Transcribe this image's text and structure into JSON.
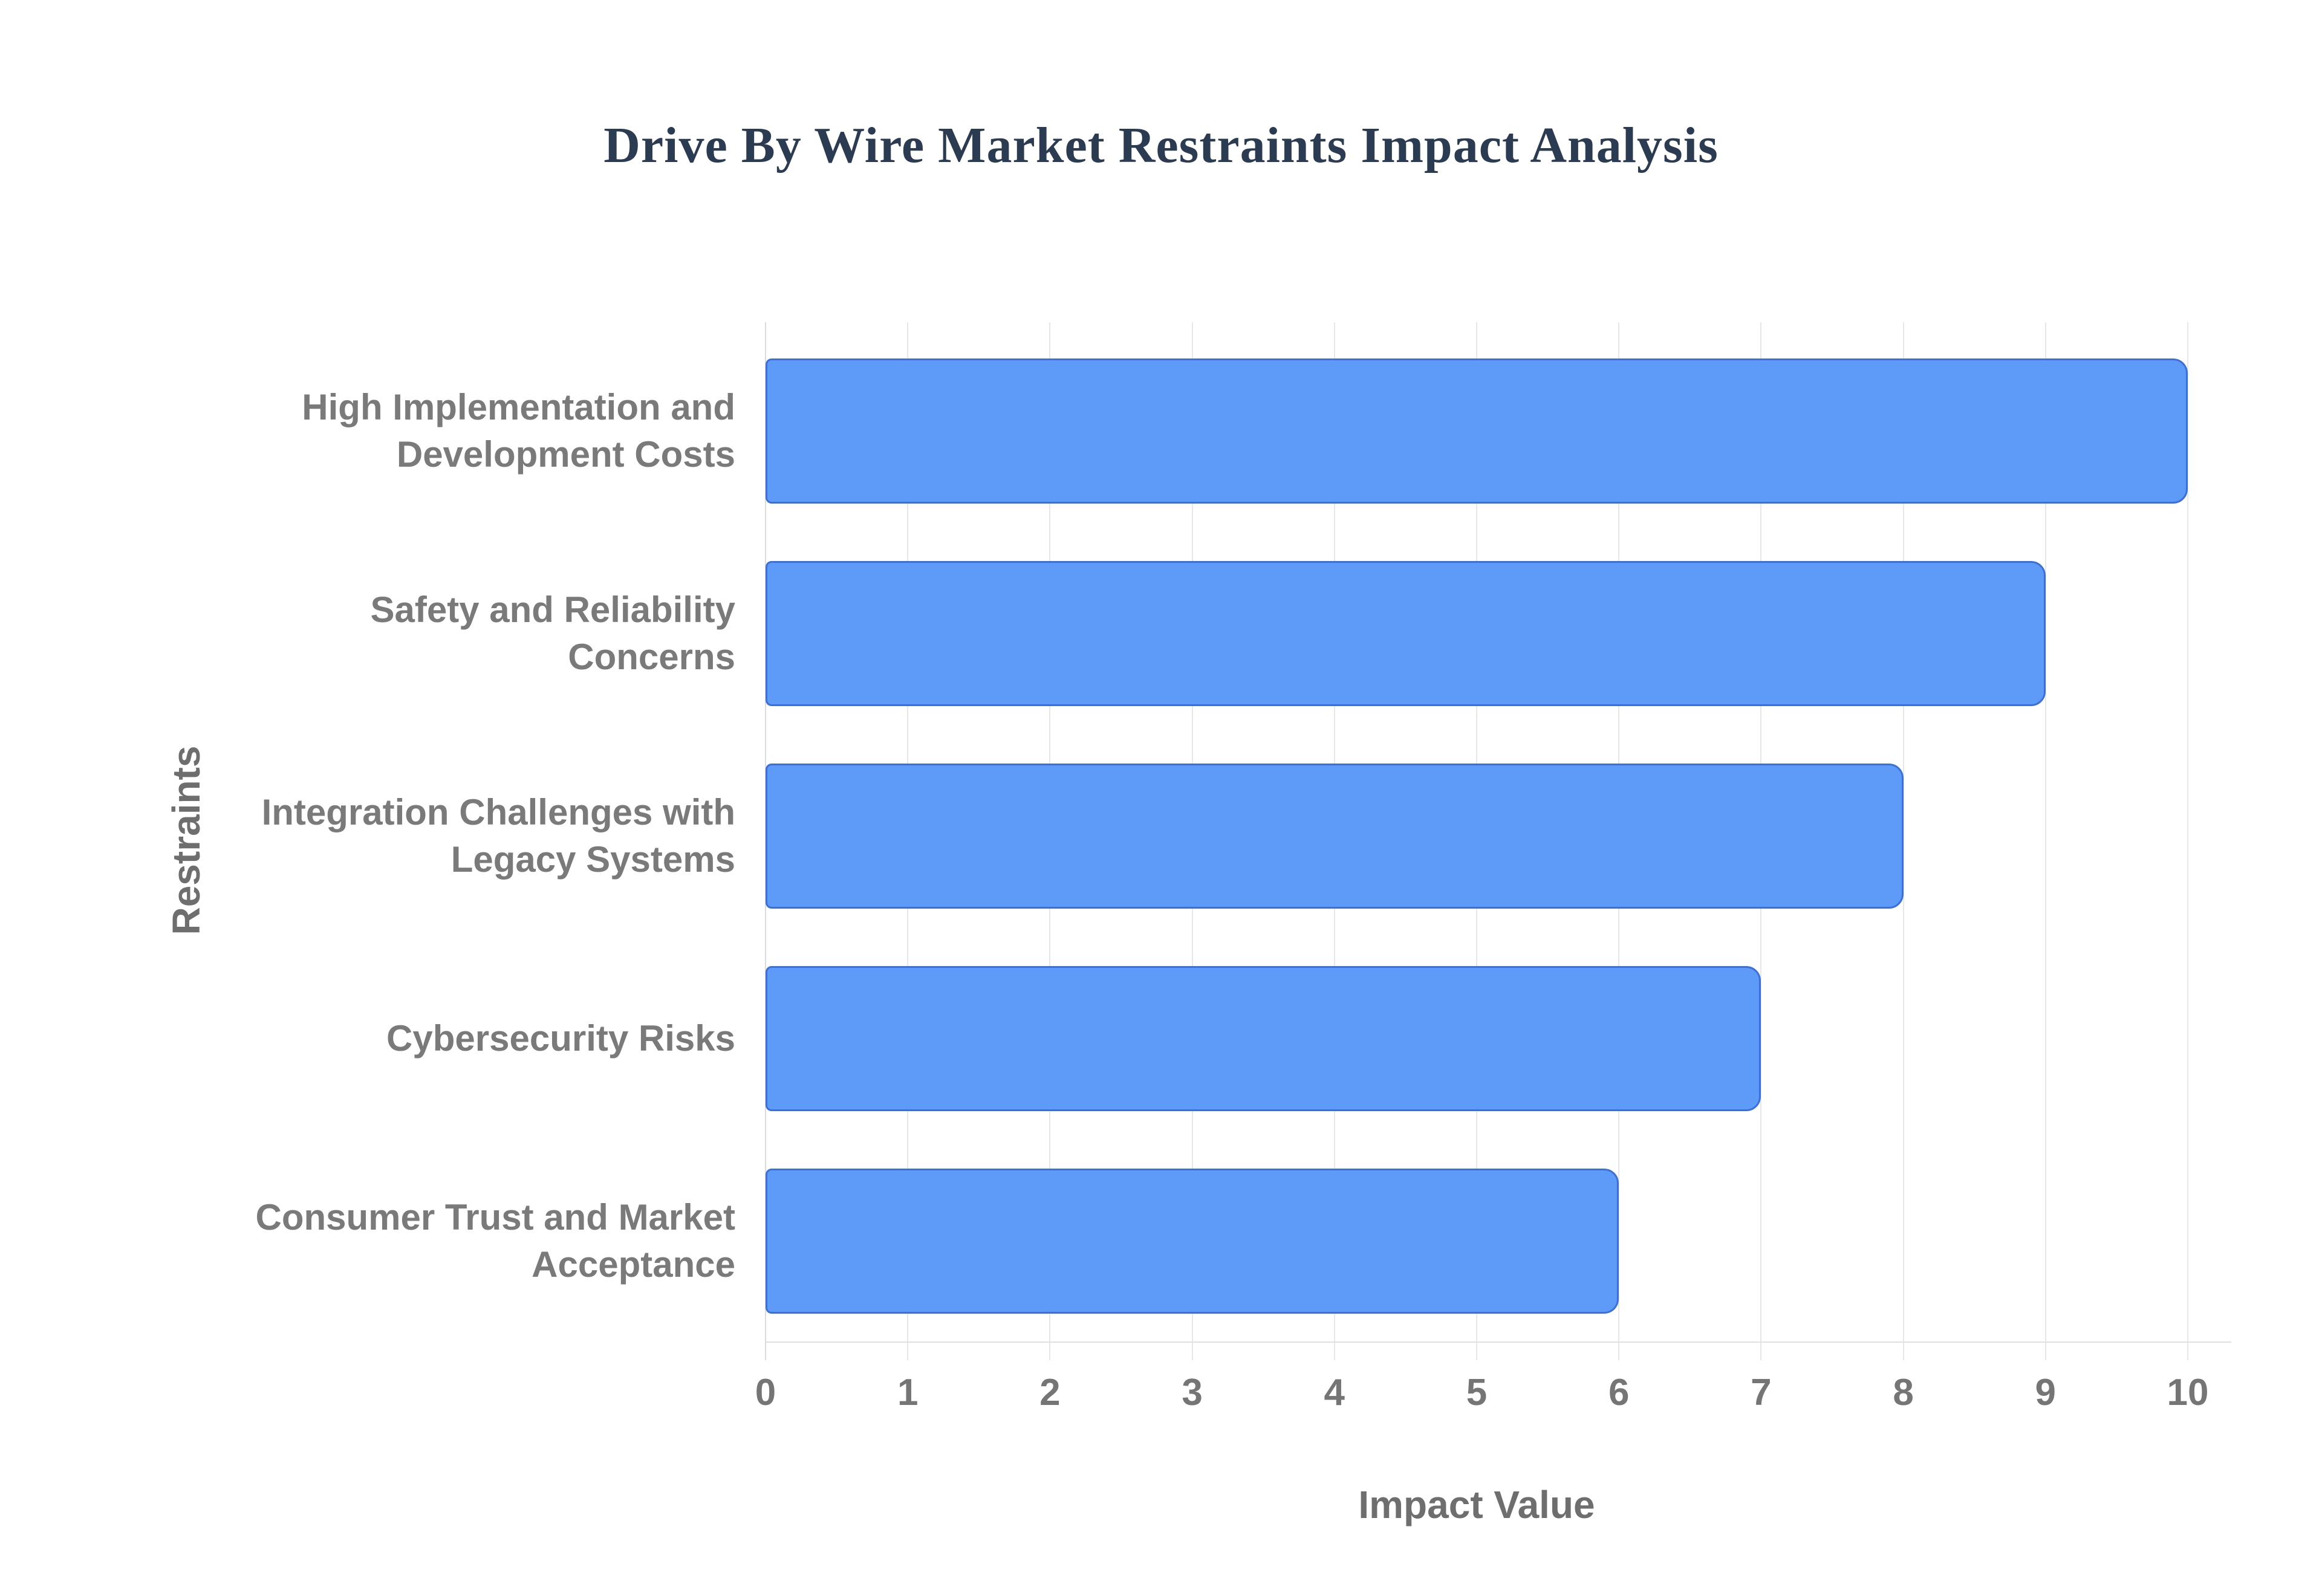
{
  "chart_data": {
    "type": "bar",
    "orientation": "horizontal",
    "title": "Drive By Wire Market Restraints Impact Analysis",
    "categories": [
      "High Implementation and Development Costs",
      "Safety and Reliability Concerns",
      "Integration Challenges with Legacy Systems",
      "Cybersecurity Risks",
      "Consumer Trust and Market Acceptance"
    ],
    "values": [
      10,
      9,
      8,
      7,
      6
    ],
    "xlabel": "Impact Value",
    "ylabel": "Restraints",
    "xlim": [
      0,
      10
    ],
    "xticks": [
      0,
      1,
      2,
      3,
      4,
      5,
      6,
      7,
      8,
      9,
      10
    ],
    "grid": true,
    "legend": "none",
    "colors": {
      "bar_fill": "#5e9af8",
      "bar_border": "#3c70d9",
      "title_text": "#2b3b52",
      "category_label": "#7a7a7a",
      "tick_label": "#757575",
      "axis_title": "#6e6e6e",
      "gridline": "#e7e7e7",
      "axis_line": "#e0e0e0"
    }
  }
}
